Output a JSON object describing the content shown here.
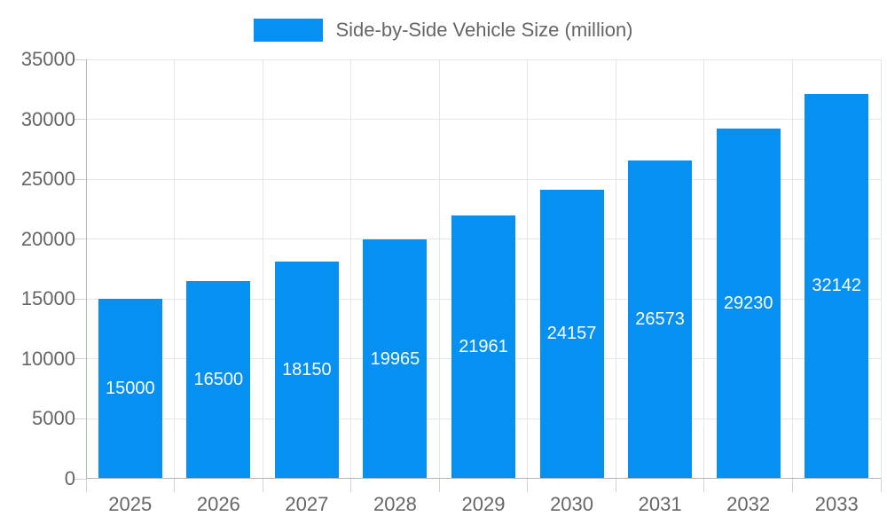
{
  "colors": {
    "bar": "#0590F2",
    "grid": "#E6E6E6",
    "axis": "#B5B5B5",
    "tick": "#D2D2D2",
    "text": "#666666",
    "bar_label": "#FFFFFF",
    "background": "#FFFFFF"
  },
  "chart_data": {
    "type": "bar",
    "title": "Side-by-Side Vehicle Size (million)",
    "categories": [
      "2025",
      "2026",
      "2027",
      "2028",
      "2029",
      "2030",
      "2031",
      "2032",
      "2033"
    ],
    "values": [
      15000,
      16500,
      18150,
      19965,
      21961,
      24157,
      26573,
      29230,
      32142
    ],
    "xlabel": "",
    "ylabel": "",
    "ylim": [
      0,
      35000
    ],
    "yticks": [
      0,
      5000,
      10000,
      15000,
      20000,
      25000,
      30000,
      35000
    ],
    "grid": true,
    "legend_position": "top",
    "value_labels": "inside-center-white"
  }
}
